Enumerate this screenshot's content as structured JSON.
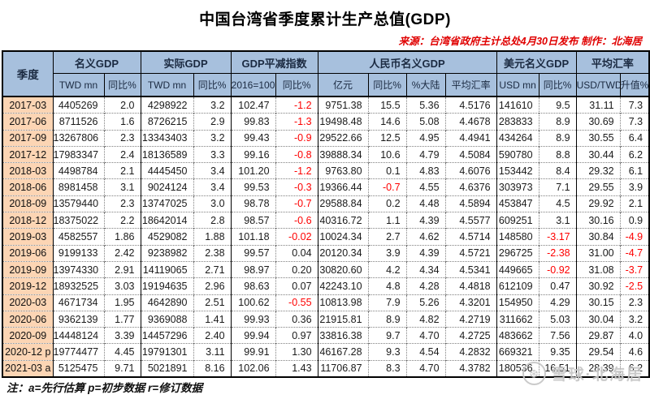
{
  "title": "中国台湾省季度累计生产总值(GDP)",
  "source_note": "来源：台湾省政府主计总处4月30日发布 制作：北海居",
  "footnote": "注：a=先行估算 p=初步数据 r=修订数据",
  "watermark": {
    "logo": "snowball-circle",
    "text": "雪球·北海居"
  },
  "colors": {
    "header_bg": "#a7c0dd",
    "quarter_col_bg": "#fcd5b4",
    "negative_value": "#fe0000",
    "source_text": "#e00000",
    "watermark": "#c6c6c6"
  },
  "table": {
    "corner_header": "季度",
    "groups": [
      {
        "label": "名义GDP",
        "cols": [
          "TWD mn",
          "同比%"
        ]
      },
      {
        "label": "实际GDP",
        "cols": [
          "TWD mn",
          "同比%"
        ]
      },
      {
        "label": "GDP平减指数",
        "cols": [
          "2016=100",
          "同比%"
        ]
      },
      {
        "label": "人民币名义GDP",
        "cols": [
          "亿元",
          "同比%",
          "%大陆",
          "平均汇率"
        ]
      },
      {
        "label": "美元名义GDP",
        "cols": [
          "USD mn",
          "同比%"
        ]
      },
      {
        "label": "平均汇率",
        "cols": [
          "USD/TWD",
          "升值%"
        ]
      }
    ],
    "rows": [
      {
        "quarter": "2017-03",
        "values": [
          "4405269",
          "2.0",
          "4298922",
          "3.2",
          "102.47",
          "-1.2",
          "9751.38",
          "15.5",
          "5.36",
          "4.5176",
          "141610",
          "9.5",
          "31.11",
          "7.3"
        ]
      },
      {
        "quarter": "2017-06",
        "values": [
          "8711526",
          "1.6",
          "8726215",
          "2.9",
          "99.83",
          "-1.3",
          "19498.48",
          "14.6",
          "5.08",
          "4.4678",
          "283833",
          "8.9",
          "30.69",
          "7.3"
        ]
      },
      {
        "quarter": "2017-09",
        "values": [
          "13267806",
          "2.3",
          "13343403",
          "3.2",
          "99.43",
          "-0.9",
          "29522.66",
          "12.5",
          "4.95",
          "4.4941",
          "434264",
          "8.9",
          "30.55",
          "6.4"
        ]
      },
      {
        "quarter": "2017-12",
        "values": [
          "17983347",
          "2.4",
          "18136589",
          "3.3",
          "99.16",
          "-0.8",
          "39888.34",
          "10.6",
          "4.79",
          "4.5084",
          "590780",
          "8.8",
          "30.44",
          "6.2"
        ]
      },
      {
        "quarter": "2018-03",
        "values": [
          "4498784",
          "2.1",
          "4445450",
          "3.4",
          "101.20",
          "-1.2",
          "9763.80",
          "0.1",
          "4.83",
          "4.6076",
          "153442",
          "8.4",
          "29.32",
          "6.1"
        ]
      },
      {
        "quarter": "2018-06",
        "values": [
          "8981458",
          "3.1",
          "9024124",
          "3.4",
          "99.53",
          "-0.3",
          "19366.44",
          "-0.7",
          "4.55",
          "4.6376",
          "303973",
          "7.1",
          "29.55",
          "3.9"
        ]
      },
      {
        "quarter": "2018-09",
        "values": [
          "13579440",
          "2.3",
          "13747025",
          "3.0",
          "98.78",
          "-0.7",
          "29588.84",
          "0.2",
          "4.48",
          "4.5894",
          "453847",
          "4.5",
          "29.92",
          "2.1"
        ]
      },
      {
        "quarter": "2018-12",
        "values": [
          "18375022",
          "2.2",
          "18642014",
          "2.8",
          "98.57",
          "-0.6",
          "40316.72",
          "1.1",
          "4.39",
          "4.5577",
          "609251",
          "3.1",
          "30.16",
          "0.9"
        ]
      },
      {
        "quarter": "2019-03",
        "values": [
          "4582557",
          "1.86",
          "4529082",
          "1.88",
          "101.18",
          "-0.02",
          "10024.34",
          "2.7",
          "4.62",
          "4.5714",
          "148580",
          "-3.17",
          "30.84",
          "-4.9"
        ]
      },
      {
        "quarter": "2019-06",
        "values": [
          "9199133",
          "2.42",
          "9238982",
          "2.38",
          "99.57",
          "0.04",
          "20120.34",
          "3.9",
          "4.39",
          "4.5721",
          "296725",
          "-2.38",
          "31.00",
          "-4.7"
        ]
      },
      {
        "quarter": "2019-09",
        "values": [
          "13974330",
          "2.91",
          "14119065",
          "2.71",
          "98.97",
          "0.20",
          "30820.60",
          "4.2",
          "4.34",
          "4.5341",
          "449665",
          "-0.92",
          "31.08",
          "-3.7"
        ]
      },
      {
        "quarter": "2019-12",
        "values": [
          "18932525",
          "3.03",
          "19194635",
          "2.96",
          "98.63",
          "0.07",
          "42243.10",
          "4.8",
          "4.28",
          "4.4818",
          "612109",
          "0.47",
          "30.92",
          "-2.5"
        ]
      },
      {
        "quarter": "2020-03",
        "values": [
          "4671734",
          "1.95",
          "4642890",
          "2.51",
          "100.62",
          "-0.55",
          "10813.98",
          "7.9",
          "5.26",
          "4.3201",
          "154950",
          "4.29",
          "30.15",
          "2.3"
        ]
      },
      {
        "quarter": "2020-06",
        "values": [
          "9362139",
          "1.77",
          "9369088",
          "1.41",
          "99.93",
          "0.36",
          "21915.81",
          "8.9",
          "4.82",
          "4.2719",
          "311662",
          "5.03",
          "30.04",
          "3.2"
        ]
      },
      {
        "quarter": "2020-09",
        "values": [
          "14448124",
          "3.39",
          "14457296",
          "2.40",
          "99.94",
          "0.97",
          "33816.38",
          "9.7",
          "4.70",
          "4.2725",
          "483662",
          "7.56",
          "29.87",
          "4.0"
        ]
      },
      {
        "quarter": "2020-12 p",
        "values": [
          "19774477",
          "4.45",
          "19791301",
          "3.11",
          "99.91",
          "1.30",
          "46167.28",
          "9.3",
          "4.54",
          "4.2832",
          "669321",
          "9.35",
          "29.54",
          "4.6"
        ]
      },
      {
        "quarter": "2021-03 a",
        "values": [
          "5125475",
          "9.71",
          "5021891",
          "8.16",
          "102.06",
          "1.43",
          "11706.87",
          "8.3",
          "4.70",
          "4.3782",
          "180536",
          "16.51",
          "28.39",
          "6.2"
        ]
      }
    ]
  }
}
